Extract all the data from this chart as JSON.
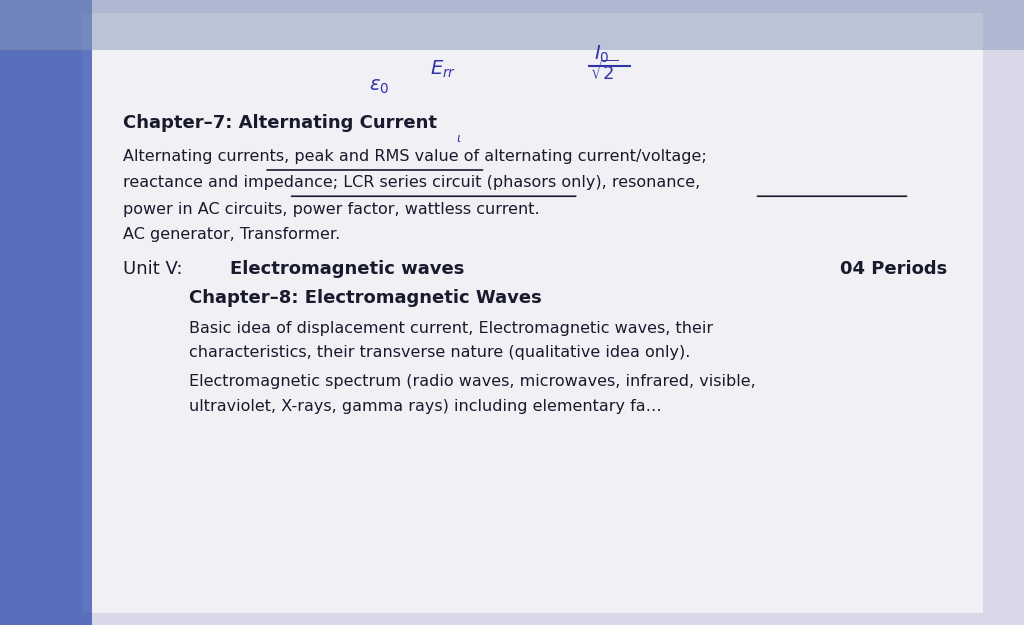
{
  "background_color": "#d8d8e8",
  "paper_color": "#f0f0f5",
  "handwritten_line1": "Eᵣᵣ   I₀",
  "handwritten_sqrt": "√2",
  "handwritten_line2": "ε₀",
  "chapter_title": "Chapter–7: Alternating Current",
  "para1_line1": "Alternating currents, peak and RMS value of alternating current/voltage;",
  "para1_line2": "reactance and impedance; LCR series circuit (phasors only), resonance,",
  "para1_line3": "power in AC circuits, power factor, wattless current.",
  "para1_line4": "AC generator, Transformer.",
  "unit_label": "Unit V:",
  "unit_topic": "Electromagnetic waves",
  "unit_periods": "04 Periods",
  "chapter8_title": "Chapter–8: Electromagnetic Waves",
  "para2_line1": "Basic idea of displacement current, Electromagnetic waves, their",
  "para2_line2": "characteristics, their transverse nature (qualitative idea only).",
  "para3_line1": "Electromagnetic spectrum (radio waves, microwaves, infrared, visible,",
  "para3_line2": "ultraviolet, X-rays, gamma rays) including elementary fa…",
  "text_color": "#1a1a2e",
  "underline_color": "#1a1a2e",
  "handwrite_color": "#3333aa"
}
